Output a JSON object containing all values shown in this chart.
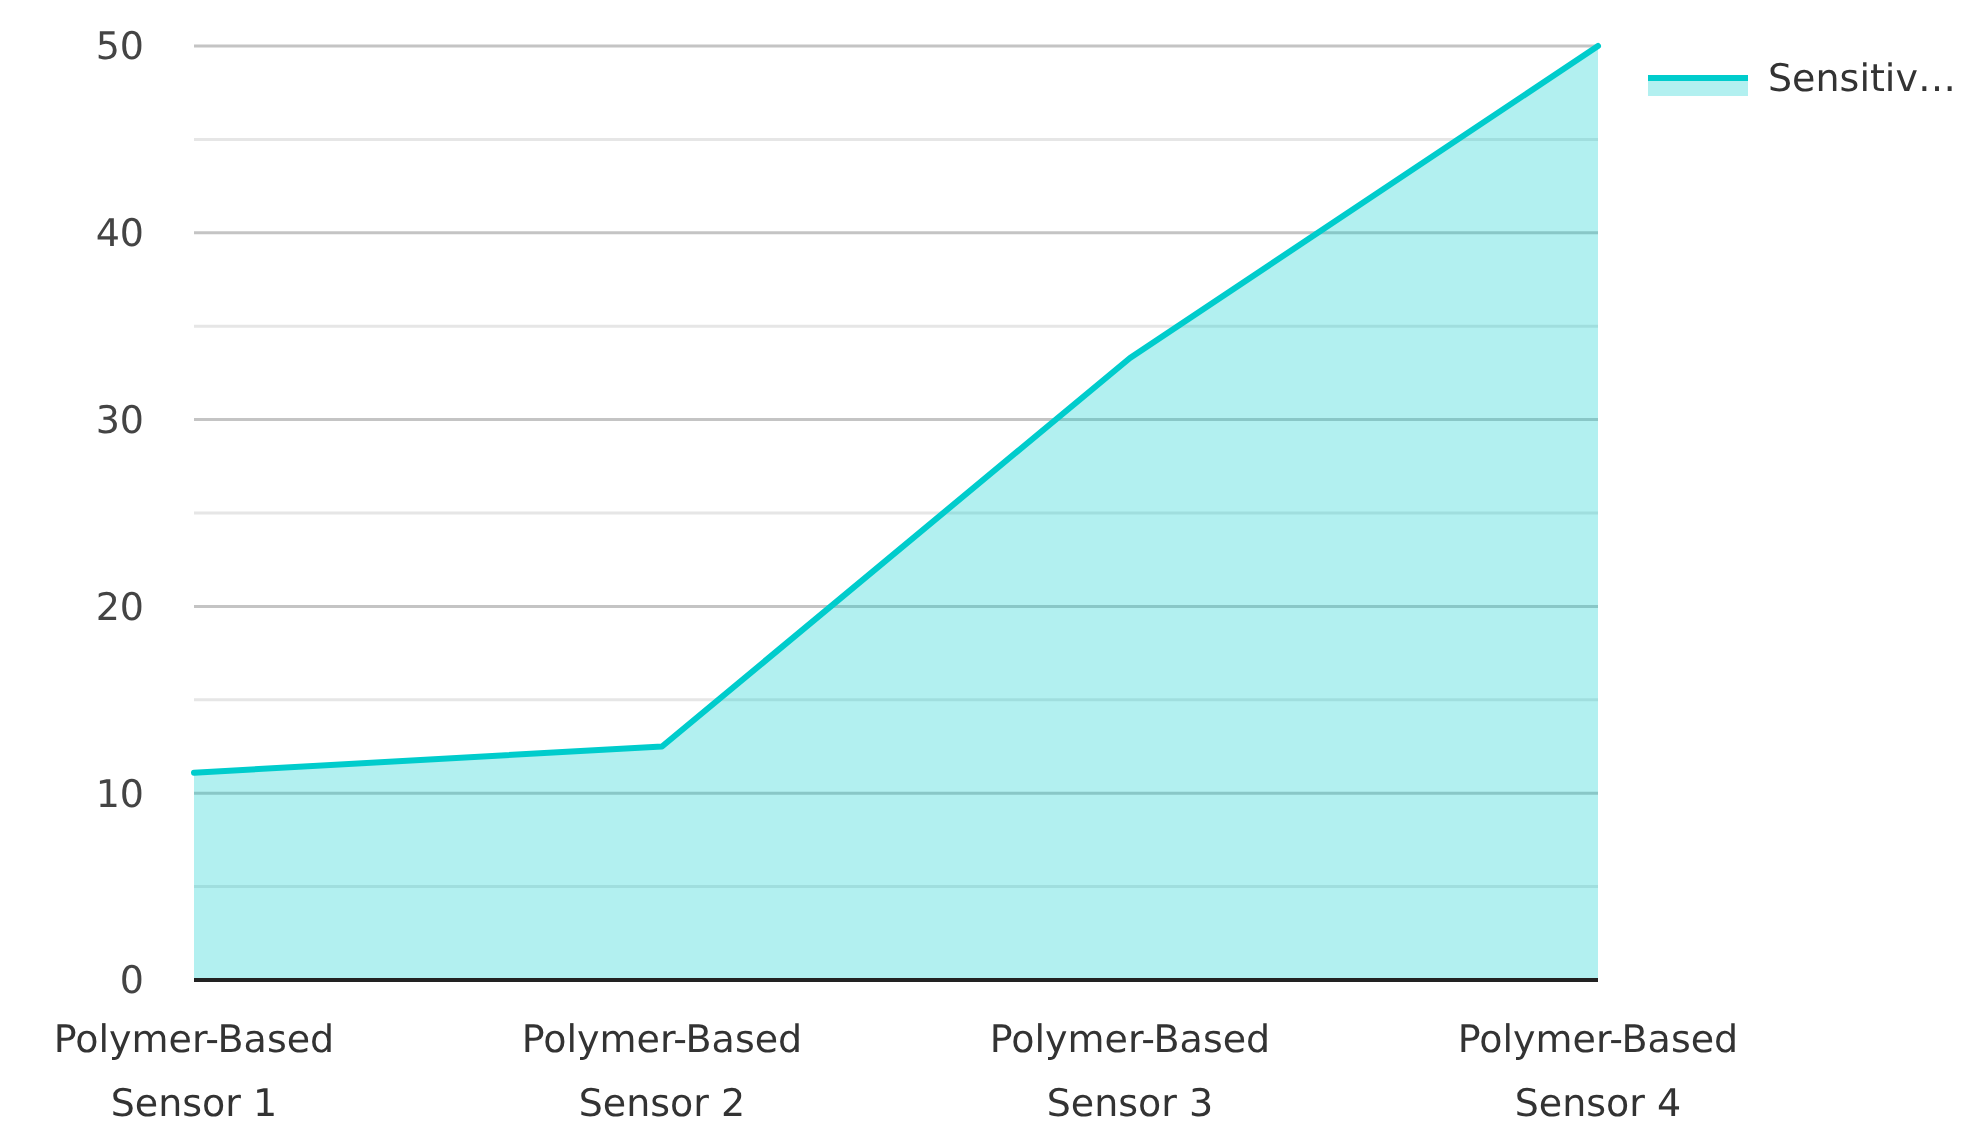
{
  "chart_data": {
    "type": "area",
    "categories": [
      "Polymer-Based Sensor 1",
      "Polymer-Based Sensor 2",
      "Polymer-Based Sensor 3",
      "Polymer-Based Sensor 4"
    ],
    "series": [
      {
        "name": "Sensitiv…",
        "color": "#00cccc",
        "values": [
          11.1,
          12.5,
          33.3,
          50
        ]
      }
    ],
    "ylim": [
      0,
      50
    ],
    "yticks": [
      0,
      {
        "value": 5,
        "label": null
      },
      10,
      {
        "value": 15,
        "label": null
      },
      20,
      {
        "value": 25,
        "label": null
      },
      30,
      {
        "value": 35,
        "label": null
      },
      40,
      {
        "value": 45,
        "label": null
      },
      50
    ],
    "grid": "y",
    "legend": "top right"
  }
}
